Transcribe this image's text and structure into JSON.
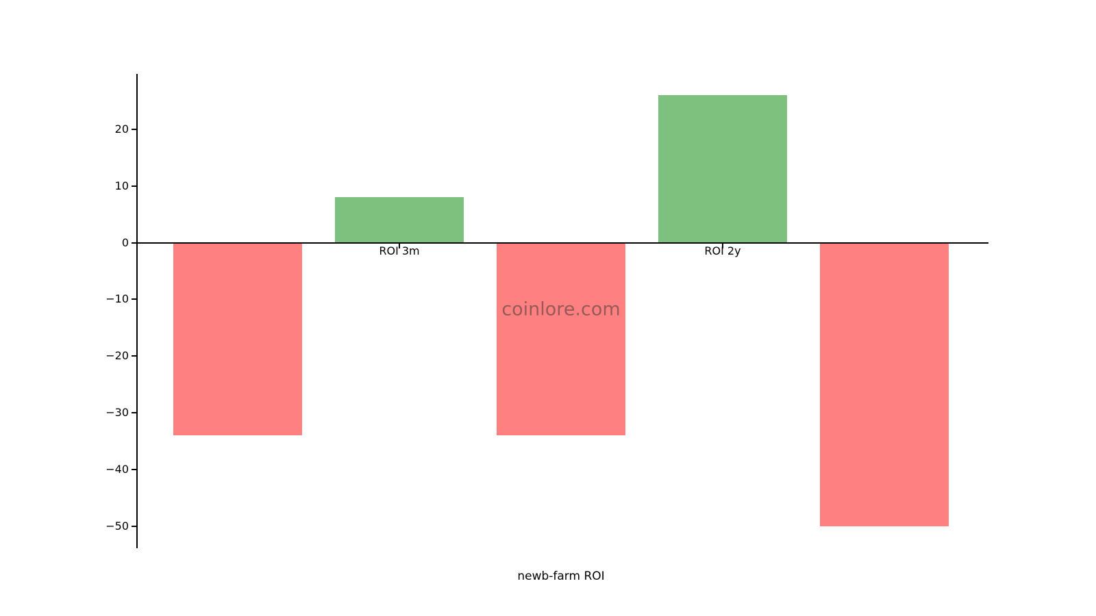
{
  "figure": {
    "background": "#ffffff",
    "axis_color": "#000000"
  },
  "watermark": {
    "text": "coinlore.com",
    "color": "#333333",
    "opacity": 0.5
  },
  "chart_data": {
    "type": "bar",
    "title": "",
    "xlabel": "newb-farm ROI",
    "ylabel": "",
    "categories": [
      "",
      "ROI 3m",
      "",
      "ROI 2y",
      ""
    ],
    "values": [
      -34,
      8,
      -34,
      26,
      -50
    ],
    "bar_colors": [
      "#ff8080",
      "#7ec07e",
      "#ff8080",
      "#7ec07e",
      "#ff8080"
    ],
    "positive_color": "#7ec07e",
    "negative_color": "#ff8080",
    "y_ticks": [
      {
        "value": 20,
        "label": "20"
      },
      {
        "value": 10,
        "label": "10"
      },
      {
        "value": 0,
        "label": "0"
      },
      {
        "value": -10,
        "label": "−10"
      },
      {
        "value": -20,
        "label": "−20"
      },
      {
        "value": -30,
        "label": "−30"
      },
      {
        "value": -40,
        "label": "−40"
      },
      {
        "value": -50,
        "label": "−50"
      }
    ],
    "ylim": [
      -54,
      30
    ],
    "grid": false
  }
}
